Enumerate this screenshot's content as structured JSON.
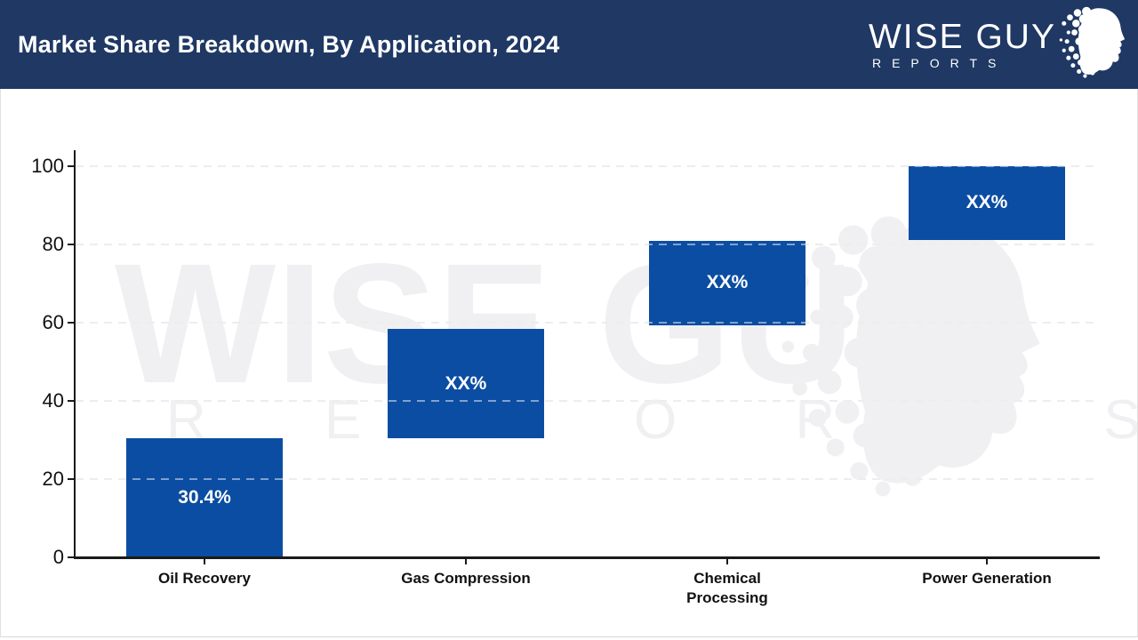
{
  "header": {
    "title": "Market Share Breakdown, By Application, 2024",
    "logo": {
      "line1": "WISE GUY",
      "line2": "REPORTS"
    }
  },
  "watermark": {
    "line1": "WISE GUY",
    "line2": "R E P O R T S"
  },
  "chart_data": {
    "type": "waterfall",
    "title": "Market Share Breakdown, By Application, 2024",
    "categories": [
      "Oil Recovery",
      "Gas Compression",
      "Chemical Processing",
      "Power Generation"
    ],
    "bars": [
      {
        "category": "Oil Recovery",
        "tick_label": "Oil Recovery",
        "label": "30.4%",
        "start": 0,
        "end": 30.4
      },
      {
        "category": "Gas Compression",
        "tick_label": "Gas Compression",
        "label": "XX%",
        "start": 30.4,
        "end": 58.3
      },
      {
        "category": "Chemical Processing",
        "tick_label": "Chemical\nProcessing",
        "label": "XX%",
        "start": 59.4,
        "end": 80.9
      },
      {
        "category": "Power Generation",
        "tick_label": "Power Generation",
        "label": "XX%",
        "start": 81.2,
        "end": 100
      }
    ],
    "y_ticks": [
      0,
      20,
      40,
      60,
      80,
      100
    ],
    "ylim": [
      0,
      104
    ],
    "grid": "horizontal-dashed",
    "legend": "none",
    "colors": {
      "bar": "#0b4da2",
      "grid": "#dcdcdc",
      "axis": "#1a1a1a",
      "header_bg": "#1f3864",
      "watermark": "#f0f0f2"
    }
  }
}
